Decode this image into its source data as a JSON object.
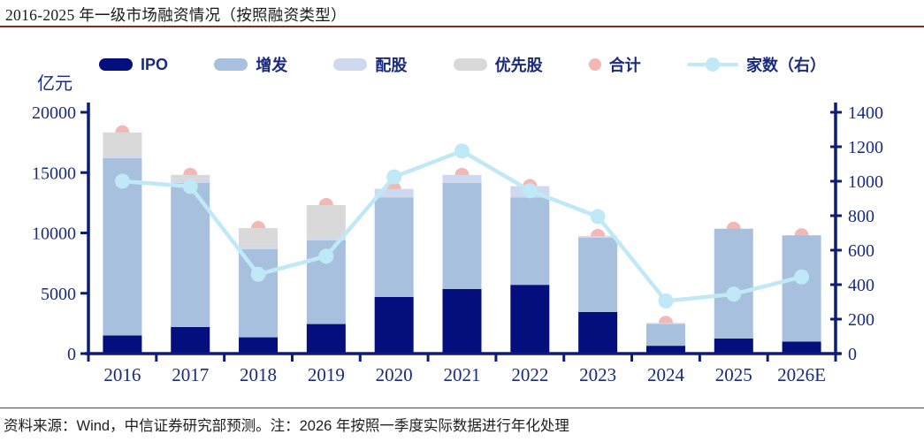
{
  "title": "2016-2025 年一级市场融资情况（按照融资类型）",
  "footer": "资料来源：Wind，中信证券研究部预测。注：2026 年按照一季度实际数据进行年化处理",
  "colors": {
    "accent_rule_red": "#8c2a1c",
    "axis_navy": "#0d1c77",
    "label_navy": "#1a2b7d",
    "ipo_navy": "#050e7d",
    "zengfa_blue": "#a7c0de",
    "peigu_lightblue": "#ced9ef",
    "youxiangu_gray": "#d9d9d9",
    "heji_pink": "#f1b8b4",
    "jiashu_cyan": "#bfe9f7"
  },
  "legend": [
    {
      "label": "IPO",
      "marker": "bar",
      "color": "#050e7d"
    },
    {
      "label": "增发",
      "marker": "bar",
      "color": "#a7c0de"
    },
    {
      "label": "配股",
      "marker": "bar",
      "color": "#ced9ef"
    },
    {
      "label": "优先股",
      "marker": "bar",
      "color": "#d9d9d9"
    },
    {
      "label": "合计",
      "marker": "dot",
      "color": "#f1b8b4"
    },
    {
      "label": "家数（右）",
      "marker": "line",
      "color": "#bfe9f7"
    }
  ],
  "chart_data": {
    "type": "bar",
    "subtype": "stacked-bars-with-line-on-secondary-axis",
    "categories": [
      "2016",
      "2017",
      "2018",
      "2019",
      "2020",
      "2021",
      "2022",
      "2023",
      "2024",
      "2025",
      "2026E"
    ],
    "series": [
      {
        "name": "IPO",
        "type": "bar",
        "axis": "left",
        "color": "#050e7d",
        "values": [
          1500,
          2200,
          1350,
          2450,
          4700,
          5350,
          5700,
          3450,
          650,
          1250,
          1000
        ]
      },
      {
        "name": "增发",
        "type": "bar",
        "axis": "left",
        "color": "#a7c0de",
        "values": [
          14700,
          11950,
          7300,
          6930,
          8250,
          8800,
          7250,
          6150,
          1800,
          9100,
          8800
        ]
      },
      {
        "name": "配股",
        "type": "bar",
        "axis": "left",
        "color": "#ced9ef",
        "values": [
          180,
          290,
          150,
          150,
          700,
          660,
          930,
          150,
          50,
          0,
          0
        ]
      },
      {
        "name": "优先股",
        "type": "bar",
        "axis": "left",
        "color": "#d9d9d9",
        "values": [
          1950,
          370,
          1600,
          2780,
          0,
          0,
          0,
          0,
          50,
          0,
          0
        ]
      },
      {
        "name": "合计",
        "type": "dot",
        "axis": "left",
        "color": "#f1b8b4",
        "values": [
          18330,
          14810,
          10400,
          12310,
          13650,
          14810,
          13880,
          9750,
          2550,
          10350,
          9800
        ]
      },
      {
        "name": "家数（右）",
        "type": "line",
        "axis": "right",
        "color": "#bfe9f7",
        "values": [
          1000,
          970,
          460,
          565,
          1025,
          1175,
          945,
          795,
          305,
          345,
          445
        ]
      }
    ],
    "left_axis": {
      "label": "亿元",
      "min": 0,
      "max": 20000,
      "step": 5000,
      "ticks": [
        "0",
        "5000",
        "10000",
        "15000",
        "20000"
      ]
    },
    "right_axis": {
      "label": "",
      "min": 0,
      "max": 1400,
      "step": 200,
      "ticks": [
        "0",
        "200",
        "400",
        "600",
        "800",
        "1000",
        "1200",
        "1400"
      ]
    },
    "grid": false,
    "legend_position": "top"
  }
}
